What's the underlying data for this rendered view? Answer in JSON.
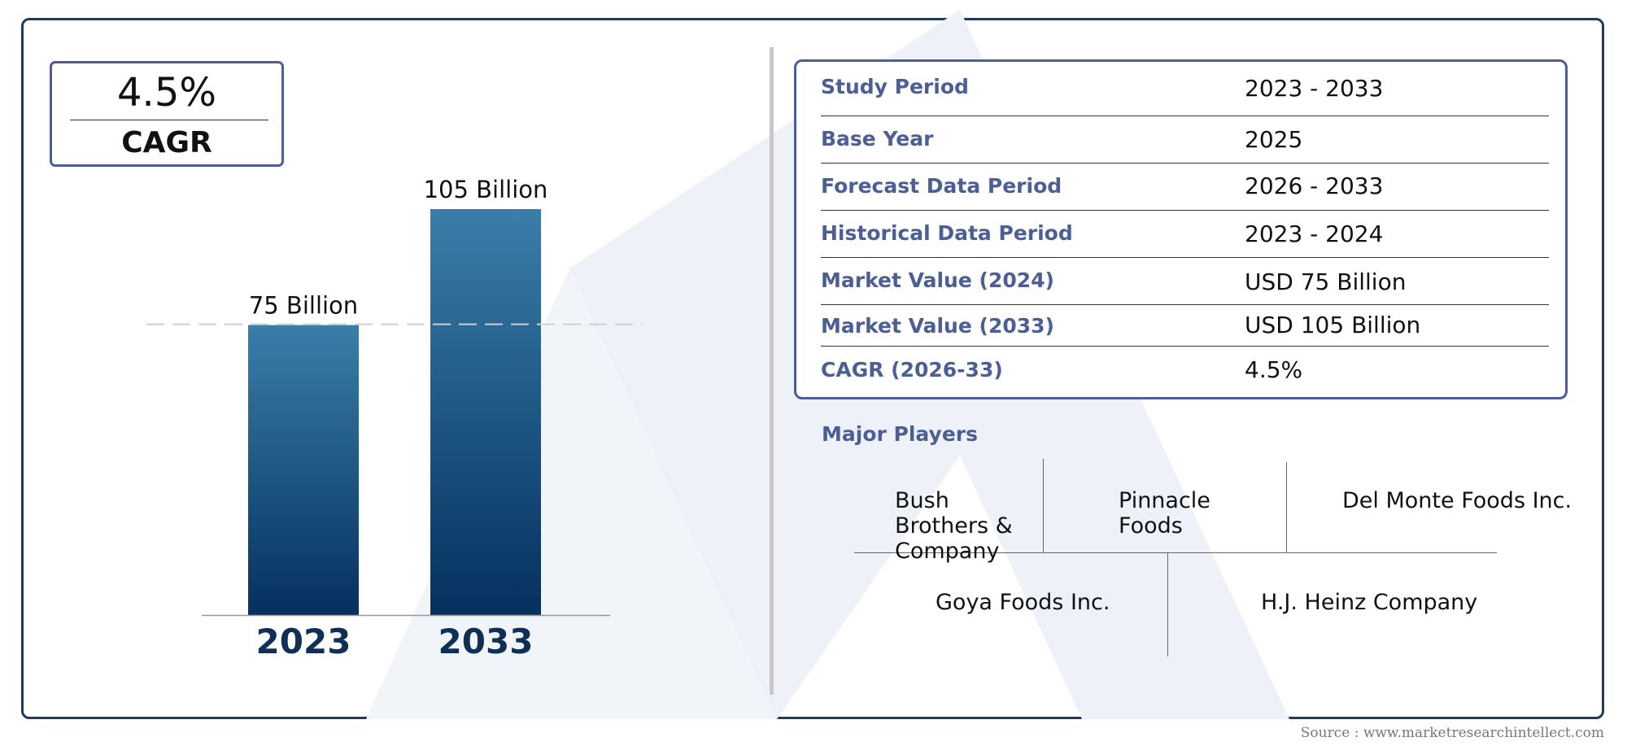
{
  "cagr_badge": {
    "value": "4.5%",
    "label": "CAGR"
  },
  "chart_data": {
    "type": "bar",
    "categories": [
      "2023",
      "2033"
    ],
    "values": [
      75,
      105
    ],
    "value_labels": [
      "75 Billion",
      "105 Billion"
    ],
    "title": "",
    "xlabel": "",
    "ylabel": "",
    "ylim": [
      0,
      105
    ],
    "grid": false,
    "reference_line": {
      "value": 75,
      "style": "dashed"
    },
    "colors": {
      "bar_top": "#3a7ea9",
      "bar_bottom": "#05305f",
      "year_label": "#0f2f57"
    }
  },
  "info_table": {
    "rows": [
      {
        "key": "Study Period",
        "value": "2023 - 2033"
      },
      {
        "key": "Base Year",
        "value": "2025"
      },
      {
        "key": "Forecast Data Period",
        "value": "2026 - 2033"
      },
      {
        "key": "Historical Data Period",
        "value": "2023 - 2024"
      },
      {
        "key": "Market Value (2024)",
        "value": "USD 75 Billion"
      },
      {
        "key": "Market Value (2033)",
        "value": "USD 105 Billion"
      },
      {
        "key": "CAGR (2026-33)",
        "value": "4.5%"
      }
    ]
  },
  "major_players": {
    "title": "Major Players",
    "names": [
      "Bush Brothers & Company",
      "Pinnacle Foods",
      "Del Monte Foods Inc.",
      "Goya Foods Inc.",
      "H.J. Heinz Company"
    ]
  },
  "source": "Source : www.marketresearchintellect.com",
  "colors": {
    "accent": "#4b5f95",
    "frame": "#1f3b55",
    "watermark": "#e9eef5"
  }
}
